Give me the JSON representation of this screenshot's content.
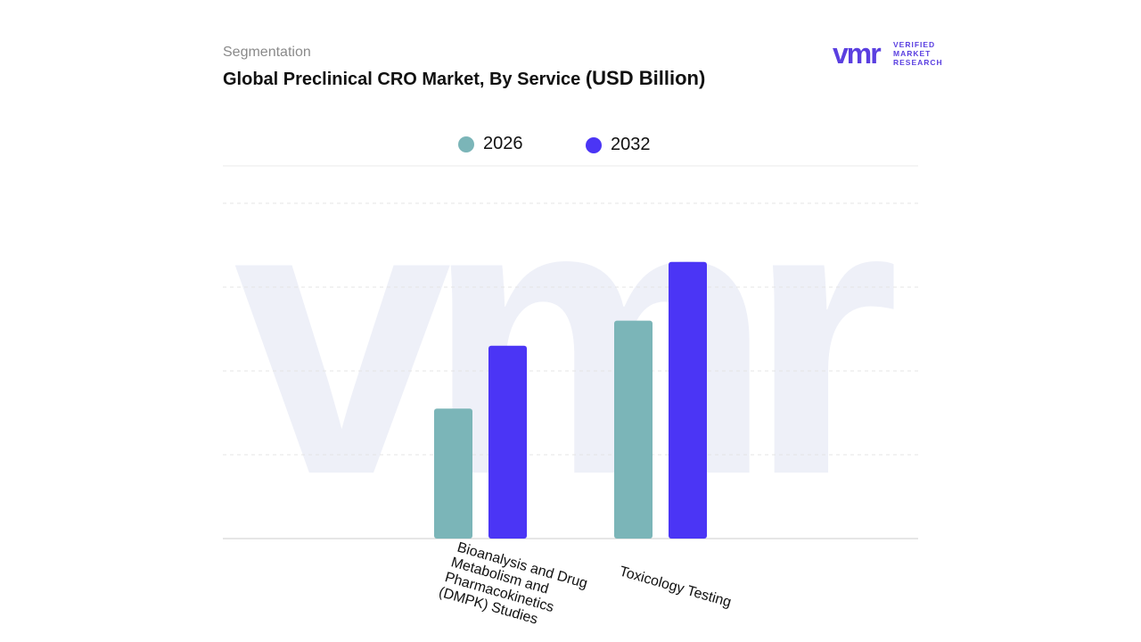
{
  "header": {
    "subtitle": "Segmentation",
    "title_main": "Global Preclinical CRO Market, By Service",
    "title_unit": "(USD Billion)"
  },
  "logo": {
    "mark": "vmr",
    "line1": "VERIFIED",
    "line2": "MARKET",
    "line3": "RESEARCH",
    "color": "#5a3fe0"
  },
  "chart_data": {
    "type": "bar",
    "title": "Global Preclinical CRO Market, By Service (USD Billion)",
    "categories": [
      "Bioanalysis and Drug Metabolism and Pharmacokinetics (DMPK) Studies",
      "Toxicology Testing"
    ],
    "series": [
      {
        "name": "2026",
        "color": "#7bb5b8",
        "values": [
          1.55,
          2.6
        ]
      },
      {
        "name": "2032",
        "color": "#4b35f5",
        "values": [
          2.3,
          3.3
        ]
      }
    ],
    "ylim": [
      0,
      4
    ],
    "grid": true,
    "legend": "top-center",
    "xlabel": "",
    "ylabel": ""
  }
}
